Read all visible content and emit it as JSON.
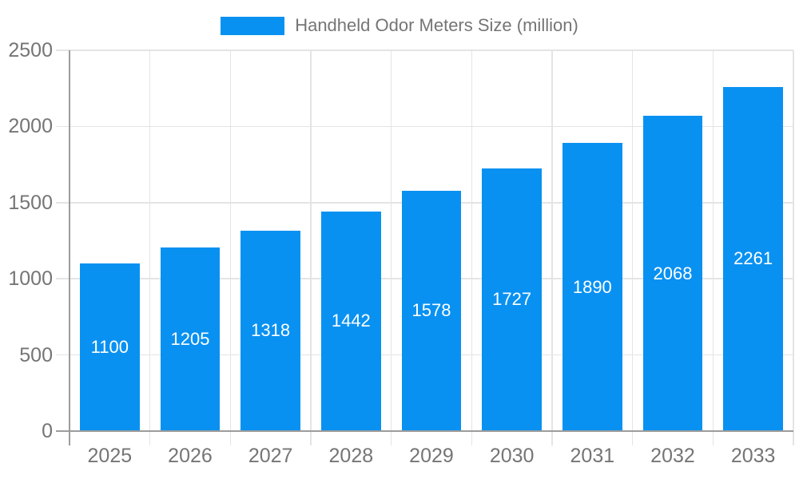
{
  "chart_data": {
    "type": "bar",
    "title": "",
    "legend": "Handheld Odor Meters Size (million)",
    "legend_position": "top-center",
    "categories": [
      "2025",
      "2026",
      "2027",
      "2028",
      "2029",
      "2030",
      "2031",
      "2032",
      "2033"
    ],
    "values": [
      1100,
      1205,
      1318,
      1442,
      1578,
      1727,
      1890,
      2068,
      2261
    ],
    "xlabel": "",
    "ylabel": "",
    "ylim": [
      0,
      2500
    ],
    "yticks": [
      0,
      500,
      1000,
      1500,
      2000,
      2500
    ],
    "grid": true,
    "bar_labels_inside": true,
    "colors": {
      "bar": "#0991f2",
      "axis": "#9c9c9c",
      "grid": "#e4e4e4",
      "tick_label": "#757575",
      "bar_label": "#ffffff",
      "background": "#ffffff"
    }
  }
}
